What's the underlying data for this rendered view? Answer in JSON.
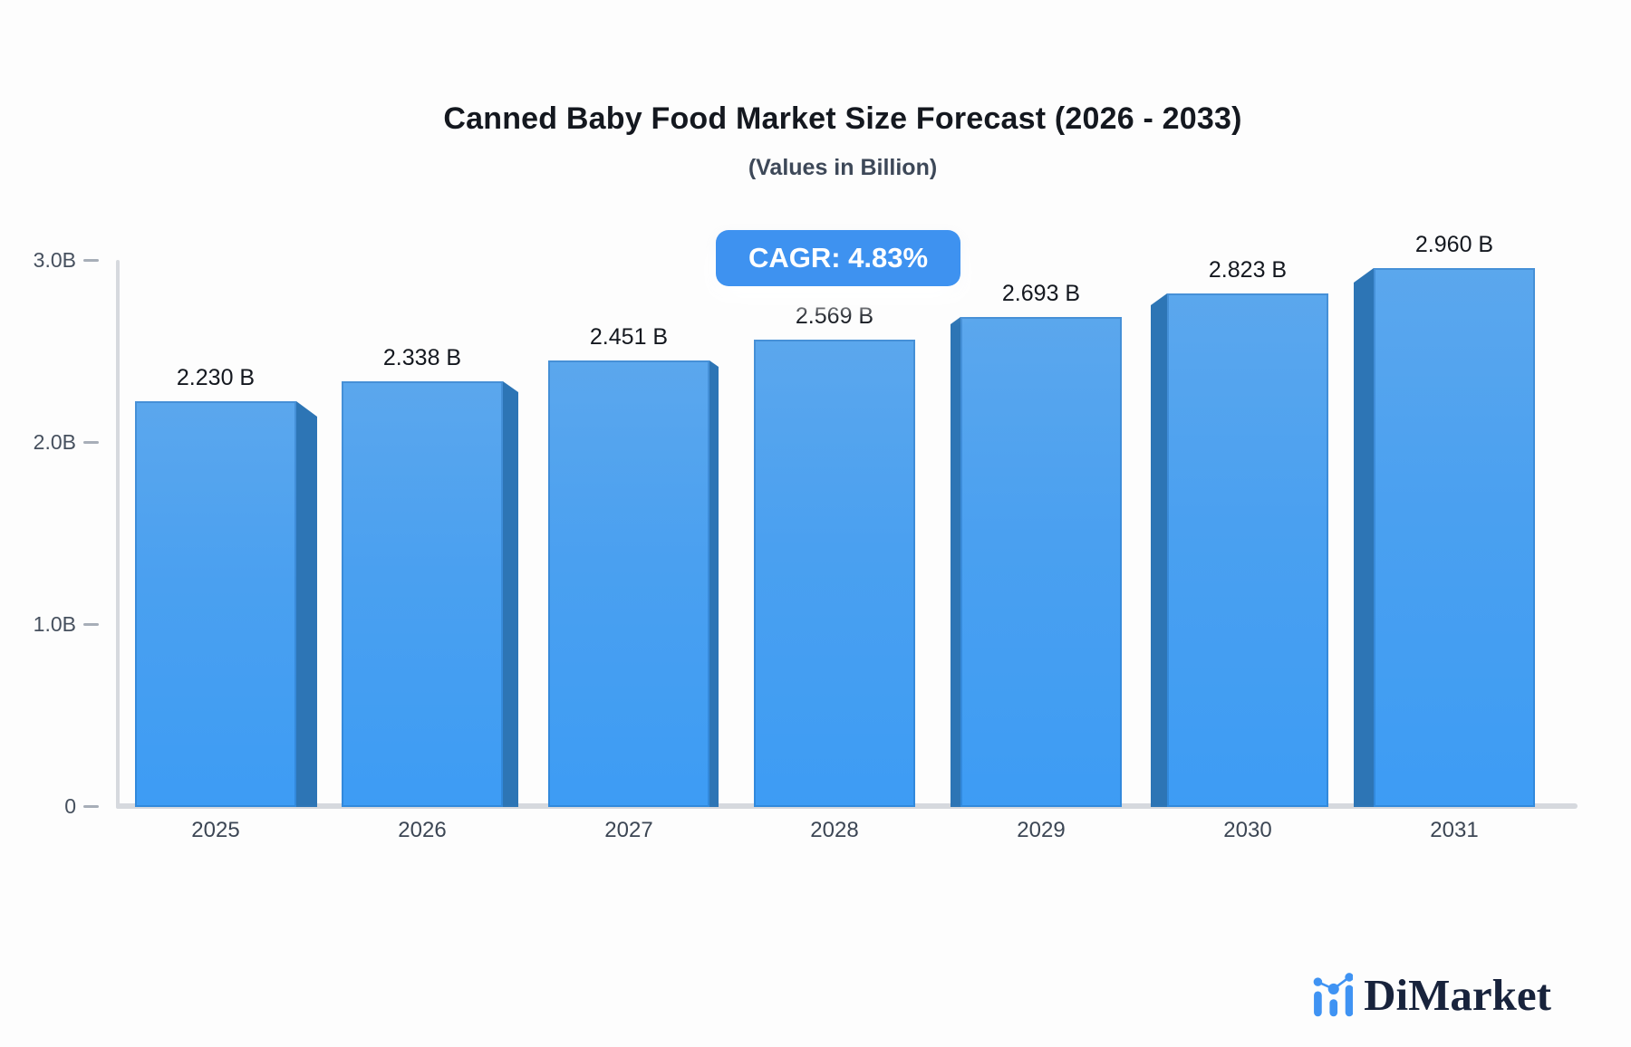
{
  "header": {
    "title": "Canned Baby Food Market Size Forecast (2026 - 2033)",
    "subtitle": "(Values in Billion)"
  },
  "badge": {
    "label": "CAGR: 4.83%"
  },
  "chart_data": {
    "type": "bar",
    "title": "Canned Baby Food Market Size Forecast (2026 - 2033)",
    "subtitle": "(Values in Billion)",
    "categories": [
      "2025",
      "2026",
      "2027",
      "2028",
      "2029",
      "2030",
      "2031"
    ],
    "values": [
      2.23,
      2.338,
      2.451,
      2.569,
      2.693,
      2.823,
      2.96
    ],
    "bar_labels": [
      "2.230 B",
      "2.338 B",
      "2.451 B",
      "2.569 B",
      "2.693 B",
      "2.823 B",
      "2.960 B"
    ],
    "xlabel": "",
    "ylabel": "",
    "ylim": [
      0,
      3
    ],
    "yticks": [
      {
        "value": 0,
        "label": "0"
      },
      {
        "value": 1,
        "label": "1.0B"
      },
      {
        "value": 2,
        "label": "2.0B"
      },
      {
        "value": 3,
        "label": "3.0B"
      }
    ],
    "grid": false,
    "legend_position": "none",
    "annotation": "CAGR: 4.83%",
    "colors": {
      "bar_face_top": "#5ba7ed",
      "bar_face_bottom": "#3d9cf4",
      "bar_side": "#2d75b5",
      "axis": "#d6d9de",
      "tick_dash": "#a7aeb8",
      "badge_bg": "#3e92f0",
      "badge_text": "#ffffff"
    }
  },
  "logo": {
    "text": "DiMarket",
    "icon": "mini-bar-line-chart-icon",
    "icon_color": "#3f93f3",
    "text_color": "#18233c"
  }
}
